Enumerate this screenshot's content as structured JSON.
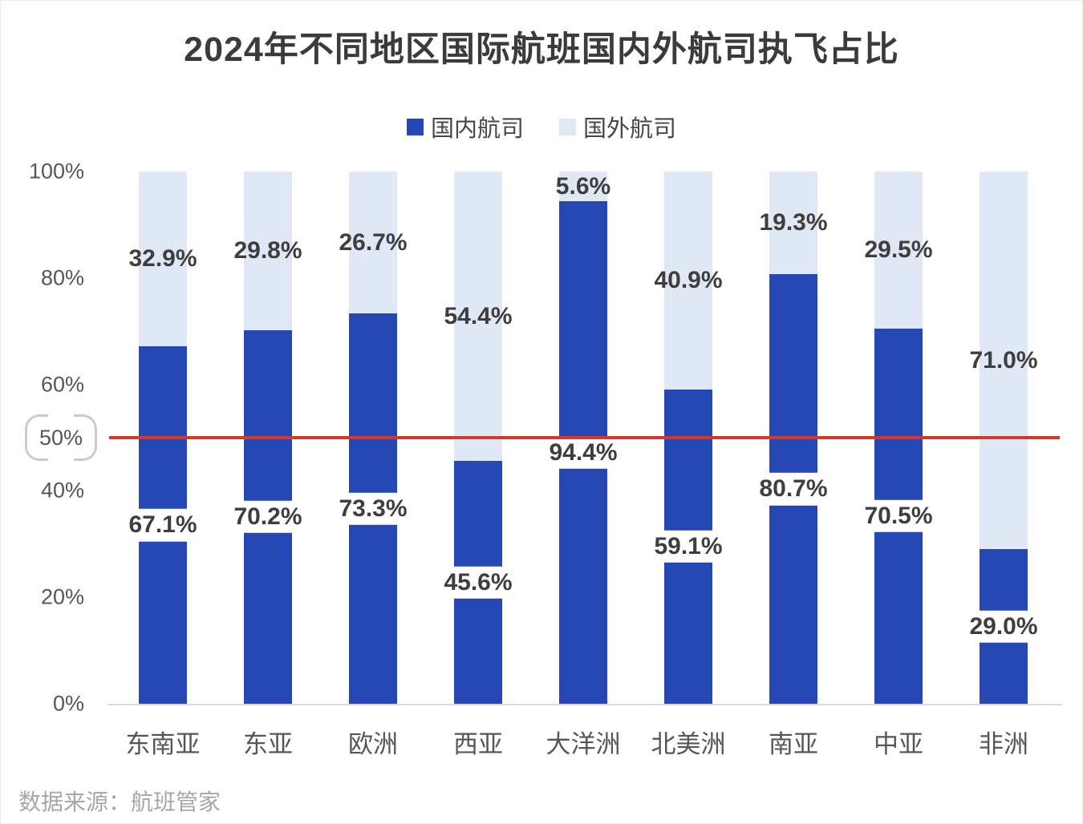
{
  "page": {
    "source_note": "数据来源：航班管家",
    "background_color": "#ffffff"
  },
  "chart_data": {
    "type": "bar",
    "stacked": true,
    "title": "2024年不同地区国际航班国内外航司执飞占比",
    "categories": [
      "东南亚",
      "东亚",
      "欧洲",
      "西亚",
      "大洋洲",
      "北美洲",
      "南亚",
      "中亚",
      "非洲"
    ],
    "series": [
      {
        "name": "国内航司",
        "color": "#2648b5",
        "values": [
          67.1,
          70.2,
          73.3,
          45.6,
          94.4,
          59.1,
          80.7,
          70.5,
          29.0
        ]
      },
      {
        "name": "国外航司",
        "color": "#dfe8f4",
        "values": [
          32.9,
          29.8,
          26.7,
          54.4,
          5.6,
          40.9,
          19.3,
          29.5,
          71.0
        ]
      }
    ],
    "label_suffix": "%",
    "ylim": [
      0,
      100
    ],
    "y_ticks": [
      {
        "label": "100%",
        "value": 100
      },
      {
        "label": "80%",
        "value": 80
      },
      {
        "label": "60%",
        "value": 60
      },
      {
        "label": "40%",
        "value": 40
      },
      {
        "label": "20%",
        "value": 20
      },
      {
        "label": "0%",
        "value": 0
      }
    ],
    "highlight_tick": {
      "label": "50%",
      "value": 50
    },
    "reference_line": {
      "value": 50,
      "color": "#d13a2b"
    },
    "axis_line_color": "#d9d9d9",
    "grid": false,
    "legend_position": "top"
  }
}
